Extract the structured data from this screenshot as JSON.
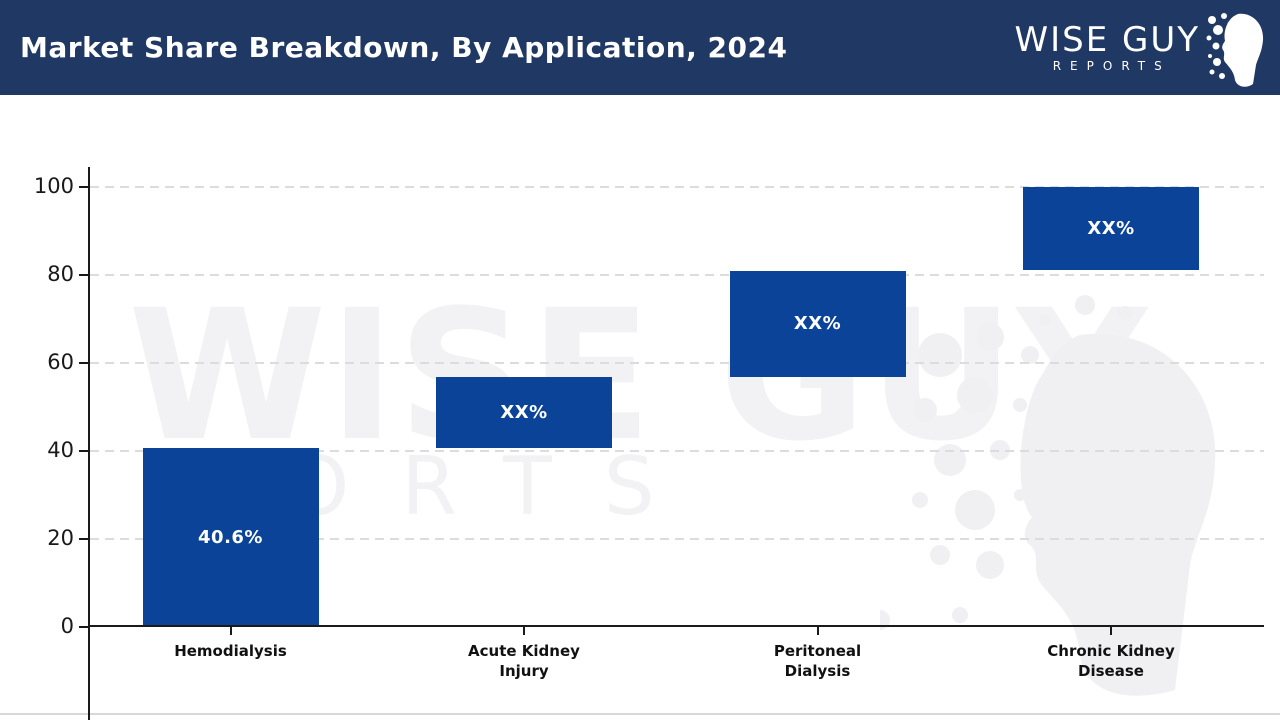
{
  "header": {
    "title": "Market Share Breakdown, By Application, 2024",
    "logo": {
      "line1": "WISE GUY",
      "line2": "REPORTS"
    }
  },
  "watermark": {
    "line1": "WISE GUY",
    "line2": "PORTS"
  },
  "colors": {
    "header_bg": "#203864",
    "bar_blue": "#0a4397",
    "grid": "#dcdcdc",
    "axis": "#1a1a1a",
    "watermark_gray": "#f2f2f4"
  },
  "chart_data": {
    "type": "bar",
    "subtype": "waterfall",
    "title": "Market Share Breakdown, By Application, 2024",
    "xlabel": "",
    "ylabel": "",
    "ylim": [
      0,
      104
    ],
    "y_ticks": [
      0,
      20,
      40,
      60,
      80,
      100
    ],
    "grid": "horizontal-dashed",
    "legend": "none",
    "categories": [
      "Hemodialysis",
      "Acute Kidney\nInjury",
      "Peritoneal\nDialysis",
      "Chronic Kidney\nDisease"
    ],
    "bars": [
      {
        "category": "Hemodialysis",
        "label": "40.6%",
        "start": 0,
        "end": 40.6
      },
      {
        "category": "Acute Kidney Injury",
        "label": "XX%",
        "start": 40.6,
        "end": 56.9
      },
      {
        "category": "Peritoneal Dialysis",
        "label": "XX%",
        "start": 56.9,
        "end": 81.0
      },
      {
        "category": "Chronic Kidney Disease",
        "label": "XX%",
        "start": 81.2,
        "end": 100
      }
    ]
  }
}
